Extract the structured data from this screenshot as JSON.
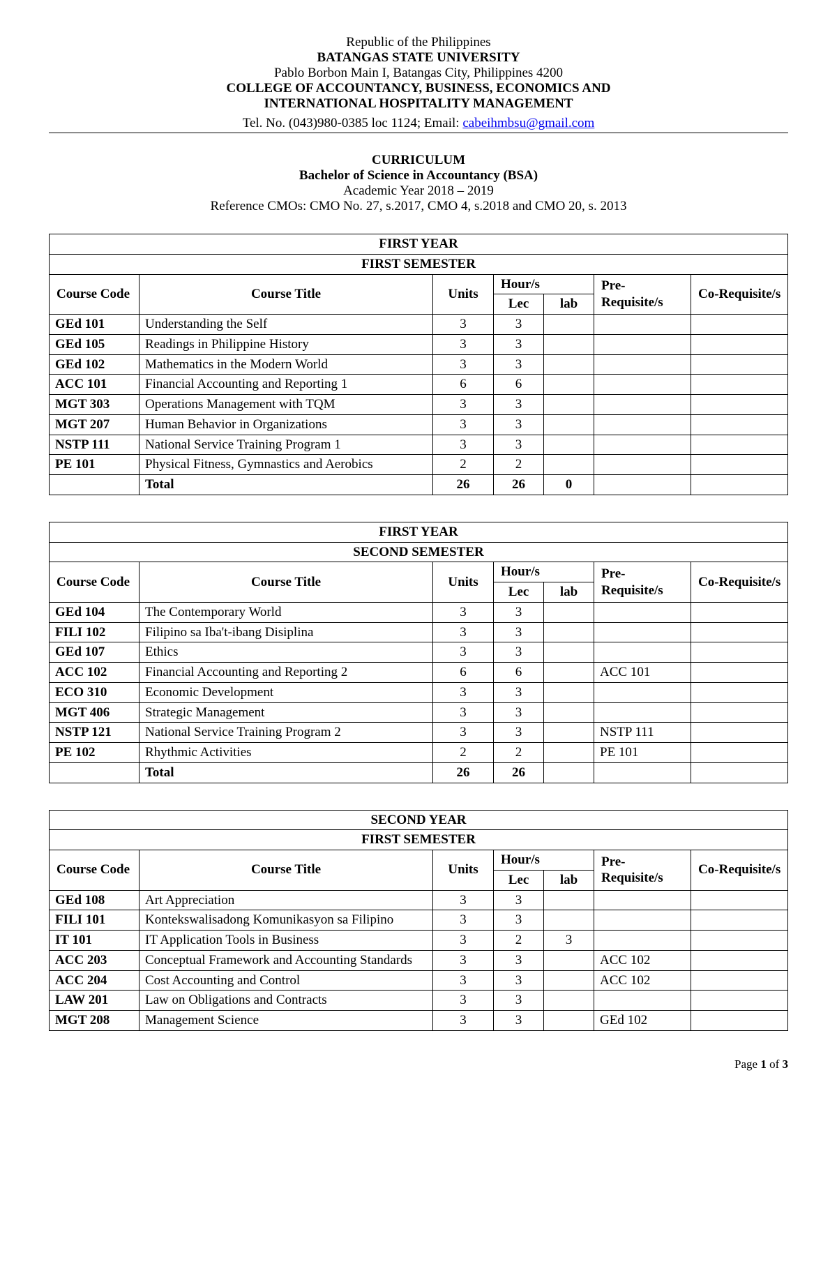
{
  "header": {
    "line1": "Republic of the Philippines",
    "line2": "BATANGAS STATE UNIVERSITY",
    "line3": "Pablo Borbon Main I, Batangas City, Philippines 4200",
    "line4": "COLLEGE OF ACCOUNTANCY, BUSINESS, ECONOMICS AND",
    "line5": "INTERNATIONAL HOSPITALITY MANAGEMENT",
    "contact_prefix": "Tel. No. (043)980-0385 loc 1124; Email: ",
    "email": "cabeihmbsu@gmail.com"
  },
  "curriculum": {
    "title": "CURRICULUM",
    "program": "Bachelor of Science in Accountancy (BSA)",
    "ay": "Academic Year 2018 – 2019",
    "ref": "Reference CMOs:  CMO No. 27, s.2017, CMO 4, s.2018 and CMO 20, s. 2013"
  },
  "col_headers": {
    "code": "Course Code",
    "title": "Course Title",
    "units": "Units",
    "hours": "Hour/s",
    "lec": "Lec",
    "lab": "lab",
    "pre": "Pre-Requisite/s",
    "co": "Co-Requisite/s"
  },
  "tables": [
    {
      "year": "FIRST YEAR",
      "semester": "FIRST SEMESTER",
      "rows": [
        {
          "code": "GEd 101",
          "title": "Understanding the Self",
          "units": "3",
          "lec": "3",
          "lab": "",
          "pre": "",
          "co": ""
        },
        {
          "code": "GEd 105",
          "title": "Readings in Philippine History",
          "units": "3",
          "lec": "3",
          "lab": "",
          "pre": "",
          "co": ""
        },
        {
          "code": "GEd 102",
          "title": "Mathematics in the Modern World",
          "units": "3",
          "lec": "3",
          "lab": "",
          "pre": "",
          "co": ""
        },
        {
          "code": "ACC 101",
          "title": "Financial Accounting and Reporting 1",
          "units": "6",
          "lec": "6",
          "lab": "",
          "pre": "",
          "co": ""
        },
        {
          "code": "MGT 303",
          "title": "Operations Management with TQM",
          "units": "3",
          "lec": "3",
          "lab": "",
          "pre": "",
          "co": ""
        },
        {
          "code": "MGT 207",
          "title": "Human Behavior in Organizations",
          "units": "3",
          "lec": "3",
          "lab": "",
          "pre": "",
          "co": ""
        },
        {
          "code": "NSTP 111",
          "title": "National Service Training Program 1",
          "units": "3",
          "lec": "3",
          "lab": "",
          "pre": "",
          "co": ""
        },
        {
          "code": "PE 101",
          "title": "Physical Fitness, Gymnastics and Aerobics",
          "units": "2",
          "lec": "2",
          "lab": "",
          "pre": "",
          "co": ""
        }
      ],
      "total": {
        "label": "Total",
        "units": "26",
        "lec": "26",
        "lab": "0"
      }
    },
    {
      "year": "FIRST YEAR",
      "semester": "SECOND SEMESTER",
      "rows": [
        {
          "code": "GEd 104",
          "title": "The Contemporary World",
          "units": "3",
          "lec": "3",
          "lab": "",
          "pre": "",
          "co": ""
        },
        {
          "code": "FILI 102",
          "title": "Filipino sa Iba't-ibang Disiplina",
          "units": "3",
          "lec": "3",
          "lab": "",
          "pre": "",
          "co": ""
        },
        {
          "code": "GEd 107",
          "title": "Ethics",
          "units": "3",
          "lec": "3",
          "lab": "",
          "pre": "",
          "co": ""
        },
        {
          "code": "ACC 102",
          "title": "Financial Accounting and Reporting 2",
          "units": "6",
          "lec": "6",
          "lab": "",
          "pre": "ACC 101",
          "co": ""
        },
        {
          "code": "ECO 310",
          "title": "Economic Development",
          "units": "3",
          "lec": "3",
          "lab": "",
          "pre": "",
          "co": ""
        },
        {
          "code": "MGT 406",
          "title": "Strategic Management",
          "units": "3",
          "lec": "3",
          "lab": "",
          "pre": "",
          "co": ""
        },
        {
          "code": "NSTP 121",
          "title": "National Service Training Program 2",
          "units": "3",
          "lec": "3",
          "lab": "",
          "pre": "NSTP 111",
          "co": ""
        },
        {
          "code": "PE 102",
          "title": "Rhythmic Activities",
          "units": "2",
          "lec": "2",
          "lab": "",
          "pre": "PE 101",
          "co": ""
        }
      ],
      "total": {
        "label": "Total",
        "units": "26",
        "lec": "26",
        "lab": ""
      }
    },
    {
      "year": "SECOND YEAR",
      "semester": "FIRST SEMESTER",
      "rows": [
        {
          "code": "GEd 108",
          "title": "Art Appreciation",
          "units": "3",
          "lec": "3",
          "lab": "",
          "pre": "",
          "co": ""
        },
        {
          "code": "FILI 101",
          "title": "Kontekswalisadong Komunikasyon sa Filipino",
          "units": "3",
          "lec": "3",
          "lab": "",
          "pre": "",
          "co": ""
        },
        {
          "code": "IT 101",
          "title": "IT Application Tools in Business",
          "units": "3",
          "lec": "2",
          "lab": "3",
          "pre": "",
          "co": ""
        },
        {
          "code": "ACC 203",
          "title": "Conceptual Framework and Accounting Standards",
          "units": "3",
          "lec": "3",
          "lab": "",
          "pre": "ACC 102",
          "co": ""
        },
        {
          "code": "ACC 204",
          "title": "Cost Accounting and Control",
          "units": "3",
          "lec": "3",
          "lab": "",
          "pre": "ACC 102",
          "co": ""
        },
        {
          "code": "LAW 201",
          "title": "Law on Obligations and Contracts",
          "units": "3",
          "lec": "3",
          "lab": "",
          "pre": "",
          "co": ""
        },
        {
          "code": "MGT  208",
          "title": "Management Science",
          "units": "3",
          "lec": "3",
          "lab": "",
          "pre": "GEd 102",
          "co": ""
        }
      ],
      "total": null
    }
  ],
  "footer": {
    "page_prefix": "Page ",
    "page_current": "1",
    "page_mid": " of ",
    "page_total": "3"
  }
}
